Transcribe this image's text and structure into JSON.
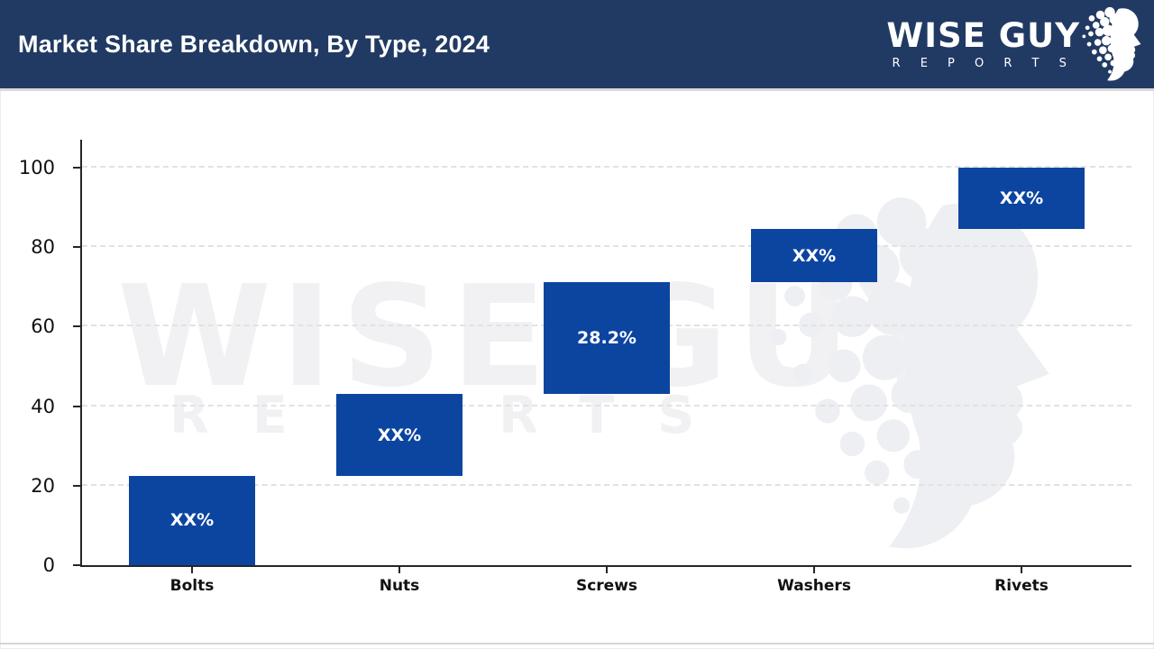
{
  "header": {
    "title": "Market Share Breakdown, By Type, 2024",
    "logo_line1": "WISE GUY",
    "logo_line2": "R E P O R T S"
  },
  "watermark": {
    "line1": "WISE GUY",
    "line2": "REPORTS"
  },
  "chart_data": {
    "type": "bar",
    "subtype": "waterfall",
    "title": "Market Share Breakdown, By Type, 2024",
    "categories": [
      "Bolts",
      "Nuts",
      "Screws",
      "Washers",
      "Rivets"
    ],
    "segments": [
      {
        "category": "Bolts",
        "start": 0,
        "end": 22.5,
        "value": 22.5,
        "label": "XX%"
      },
      {
        "category": "Nuts",
        "start": 22.5,
        "end": 43.0,
        "value": 20.5,
        "label": "XX%"
      },
      {
        "category": "Screws",
        "start": 43.0,
        "end": 71.2,
        "value": 28.2,
        "label": "28.2%"
      },
      {
        "category": "Washers",
        "start": 71.2,
        "end": 84.5,
        "value": 13.3,
        "label": "XX%"
      },
      {
        "category": "Rivets",
        "start": 84.5,
        "end": 100,
        "value": 15.5,
        "label": "XX%"
      }
    ],
    "yticks": [
      0,
      20,
      40,
      60,
      80,
      100
    ],
    "ylim": [
      0,
      107
    ],
    "xlabel": "",
    "ylabel": "",
    "grid": "horizontal-dashed",
    "legend": "none",
    "bar_color": "#0c45a0",
    "bar_label_color": "#ffffff",
    "header_color": "#213a63",
    "axis_color": "#262626"
  }
}
